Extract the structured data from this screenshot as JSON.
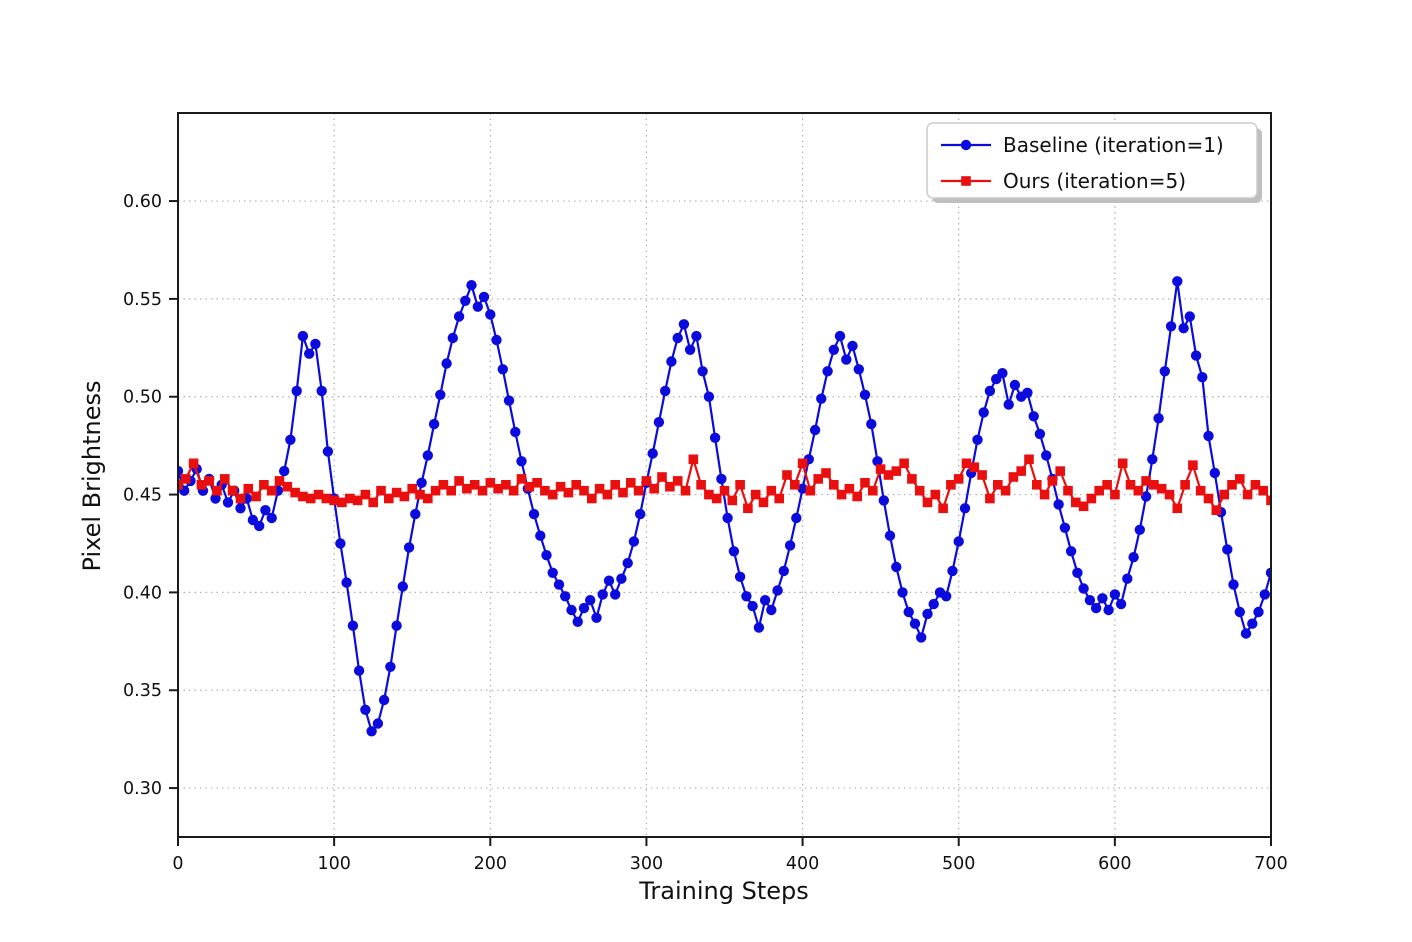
{
  "figure": {
    "background": "#ffffff",
    "spine_color": "#1a1a1a"
  },
  "chart_data": {
    "type": "line",
    "title": "",
    "xlabel": "Training Steps",
    "ylabel": "Pixel Brightness",
    "xlim": [
      0,
      700
    ],
    "ylim": [
      0.275,
      0.645
    ],
    "xticks": [
      0,
      100,
      200,
      300,
      400,
      500,
      600,
      700
    ],
    "xtick_labels": [
      "0",
      "100",
      "200",
      "300",
      "400",
      "500",
      "600",
      "700"
    ],
    "yticks": [
      0.3,
      0.35,
      0.4,
      0.45,
      0.5,
      0.55,
      0.6
    ],
    "ytick_labels": [
      "0.30",
      "0.35",
      "0.40",
      "0.45",
      "0.50",
      "0.55",
      "0.60"
    ],
    "grid": {
      "visible": true,
      "style": "dotted",
      "color": "#b0b0b0"
    },
    "legend": {
      "position": "upper right",
      "shadow": true,
      "border_color": "#cccccc",
      "background": "#ffffff"
    },
    "series": [
      {
        "name": "Baseline (iteration=1)",
        "color": "#0b0bdd",
        "marker": "circle",
        "line_width": 2.2,
        "x0": 0,
        "dx": 4,
        "values": [
          0.462,
          0.452,
          0.457,
          0.463,
          0.452,
          0.458,
          0.448,
          0.455,
          0.446,
          0.452,
          0.443,
          0.448,
          0.437,
          0.434,
          0.442,
          0.438,
          0.452,
          0.462,
          0.478,
          0.503,
          0.531,
          0.522,
          0.527,
          0.503,
          0.472,
          0.448,
          0.425,
          0.405,
          0.383,
          0.36,
          0.34,
          0.329,
          0.333,
          0.345,
          0.362,
          0.383,
          0.403,
          0.423,
          0.44,
          0.456,
          0.47,
          0.486,
          0.501,
          0.517,
          0.53,
          0.541,
          0.549,
          0.557,
          0.546,
          0.551,
          0.542,
          0.529,
          0.514,
          0.498,
          0.482,
          0.467,
          0.453,
          0.44,
          0.429,
          0.419,
          0.41,
          0.404,
          0.398,
          0.391,
          0.385,
          0.392,
          0.396,
          0.387,
          0.399,
          0.406,
          0.399,
          0.407,
          0.415,
          0.426,
          0.44,
          0.456,
          0.471,
          0.487,
          0.503,
          0.518,
          0.53,
          0.537,
          0.524,
          0.531,
          0.513,
          0.5,
          0.479,
          0.458,
          0.438,
          0.421,
          0.408,
          0.398,
          0.393,
          0.382,
          0.396,
          0.391,
          0.401,
          0.411,
          0.424,
          0.438,
          0.453,
          0.468,
          0.483,
          0.499,
          0.513,
          0.524,
          0.531,
          0.519,
          0.526,
          0.514,
          0.501,
          0.486,
          0.467,
          0.447,
          0.429,
          0.413,
          0.4,
          0.39,
          0.384,
          0.377,
          0.389,
          0.394,
          0.4,
          0.398,
          0.411,
          0.426,
          0.443,
          0.461,
          0.478,
          0.492,
          0.503,
          0.509,
          0.512,
          0.496,
          0.506,
          0.5,
          0.502,
          0.49,
          0.481,
          0.47,
          0.458,
          0.445,
          0.433,
          0.421,
          0.41,
          0.402,
          0.396,
          0.392,
          0.397,
          0.391,
          0.399,
          0.394,
          0.407,
          0.418,
          0.432,
          0.449,
          0.468,
          0.489,
          0.513,
          0.536,
          0.559,
          0.535,
          0.541,
          0.521,
          0.51,
          0.48,
          0.461,
          0.441,
          0.422,
          0.404,
          0.39,
          0.379,
          0.384,
          0.39,
          0.399,
          0.41
        ]
      },
      {
        "name": "Ours (iteration=5)",
        "color": "#e90f0f",
        "marker": "square",
        "line_width": 2.2,
        "x0": 0,
        "dx": 5,
        "values": [
          0.455,
          0.458,
          0.466,
          0.455,
          0.457,
          0.452,
          0.458,
          0.452,
          0.448,
          0.453,
          0.449,
          0.455,
          0.452,
          0.457,
          0.454,
          0.451,
          0.449,
          0.448,
          0.45,
          0.448,
          0.447,
          0.446,
          0.448,
          0.447,
          0.45,
          0.446,
          0.452,
          0.448,
          0.451,
          0.449,
          0.453,
          0.45,
          0.448,
          0.452,
          0.455,
          0.452,
          0.457,
          0.453,
          0.455,
          0.452,
          0.456,
          0.453,
          0.455,
          0.452,
          0.458,
          0.454,
          0.456,
          0.452,
          0.45,
          0.454,
          0.451,
          0.455,
          0.452,
          0.448,
          0.453,
          0.45,
          0.455,
          0.451,
          0.456,
          0.452,
          0.457,
          0.453,
          0.459,
          0.454,
          0.457,
          0.452,
          0.468,
          0.455,
          0.45,
          0.448,
          0.452,
          0.447,
          0.455,
          0.443,
          0.45,
          0.446,
          0.452,
          0.448,
          0.46,
          0.455,
          0.466,
          0.452,
          0.458,
          0.461,
          0.455,
          0.45,
          0.453,
          0.449,
          0.456,
          0.452,
          0.463,
          0.46,
          0.462,
          0.466,
          0.458,
          0.452,
          0.446,
          0.45,
          0.443,
          0.455,
          0.458,
          0.466,
          0.464,
          0.46,
          0.448,
          0.455,
          0.452,
          0.459,
          0.462,
          0.468,
          0.455,
          0.45,
          0.457,
          0.462,
          0.452,
          0.446,
          0.444,
          0.448,
          0.452,
          0.455,
          0.45,
          0.466,
          0.455,
          0.452,
          0.457,
          0.455,
          0.453,
          0.45,
          0.443,
          0.455,
          0.465,
          0.452,
          0.448,
          0.442,
          0.45,
          0.455,
          0.458,
          0.45,
          0.455,
          0.452,
          0.447
        ]
      }
    ]
  }
}
